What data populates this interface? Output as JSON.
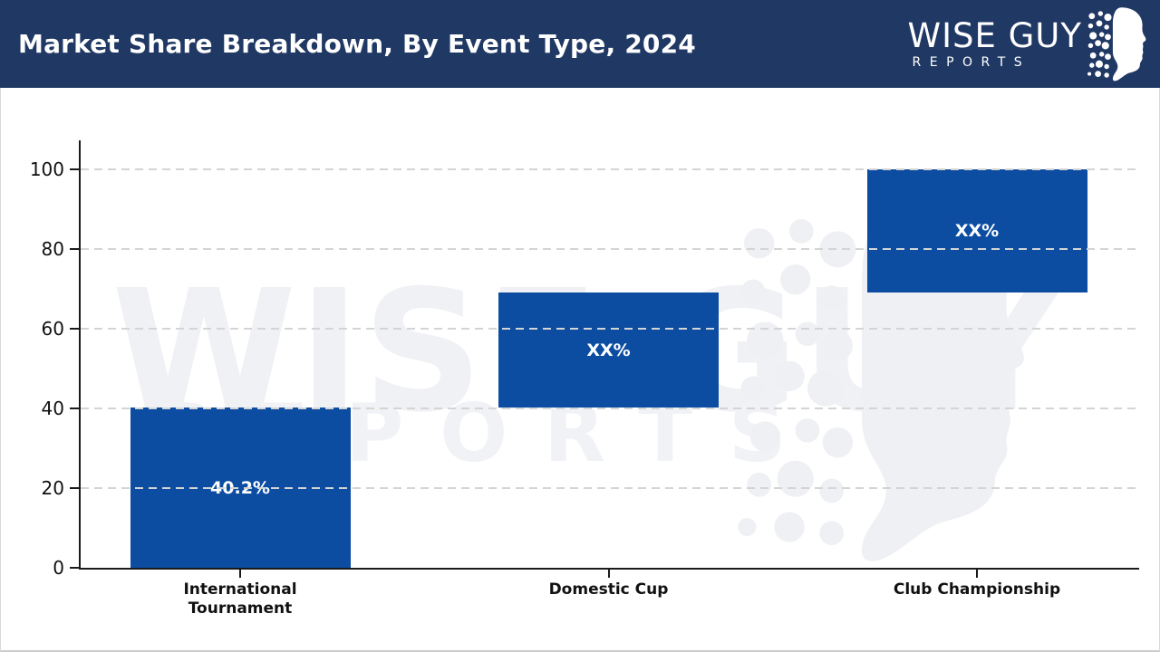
{
  "header": {
    "title": "Market Share Breakdown, By Event Type, 2024",
    "logo": {
      "line1": "WISE GUY",
      "line2": "REPORTS"
    }
  },
  "watermark": {
    "line1": "WISE GUY",
    "line2": "REPORTS"
  },
  "colors": {
    "header_bg": "#203864",
    "bar": "#0C4DA2",
    "watermark": "#F0F1F4",
    "gridline": "#D4D4D4",
    "axis": "#1A1A1A"
  },
  "chart_data": {
    "type": "bar",
    "subtype": "stacked-range-waterfall",
    "title": "Market Share Breakdown, By Event Type, 2024",
    "categories": [
      "International Tournament",
      "Domestic Cup",
      "Club Championship"
    ],
    "segments": [
      {
        "category": "International Tournament",
        "start": 0,
        "end": 40.2,
        "label": "40.2%"
      },
      {
        "category": "Domestic Cup",
        "start": 40.2,
        "end": 69.1,
        "label": "XX%"
      },
      {
        "category": "Club Championship",
        "start": 69.1,
        "end": 100,
        "label": "XX%"
      }
    ],
    "xlabel": "",
    "ylabel": "",
    "ylim": [
      0,
      107
    ],
    "yticks": [
      0,
      20,
      40,
      60,
      80,
      100
    ],
    "grid": "dashed-horizontal-over-bars",
    "legend": "none",
    "bar_color": "#0C4DA2",
    "bar_label_color": "#FFFFFF"
  }
}
